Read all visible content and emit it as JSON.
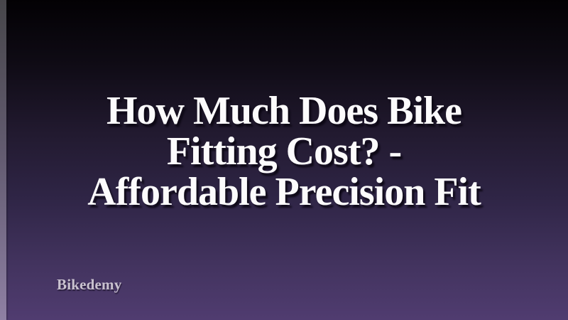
{
  "title": {
    "lines": [
      "How Much Does Bike",
      "Fitting Cost? -",
      "Affordable Precision Fit"
    ]
  },
  "brand": {
    "label": "Bikedemy"
  },
  "colors": {
    "background_top": "#030104",
    "background_middle": "#2f2546",
    "background_bottom": "#503c70",
    "left_edge_top": "#47464a",
    "left_edge_bottom": "#8f80a4",
    "title_text": "#fcfbfc",
    "brand_text": "#c9c2cf"
  }
}
